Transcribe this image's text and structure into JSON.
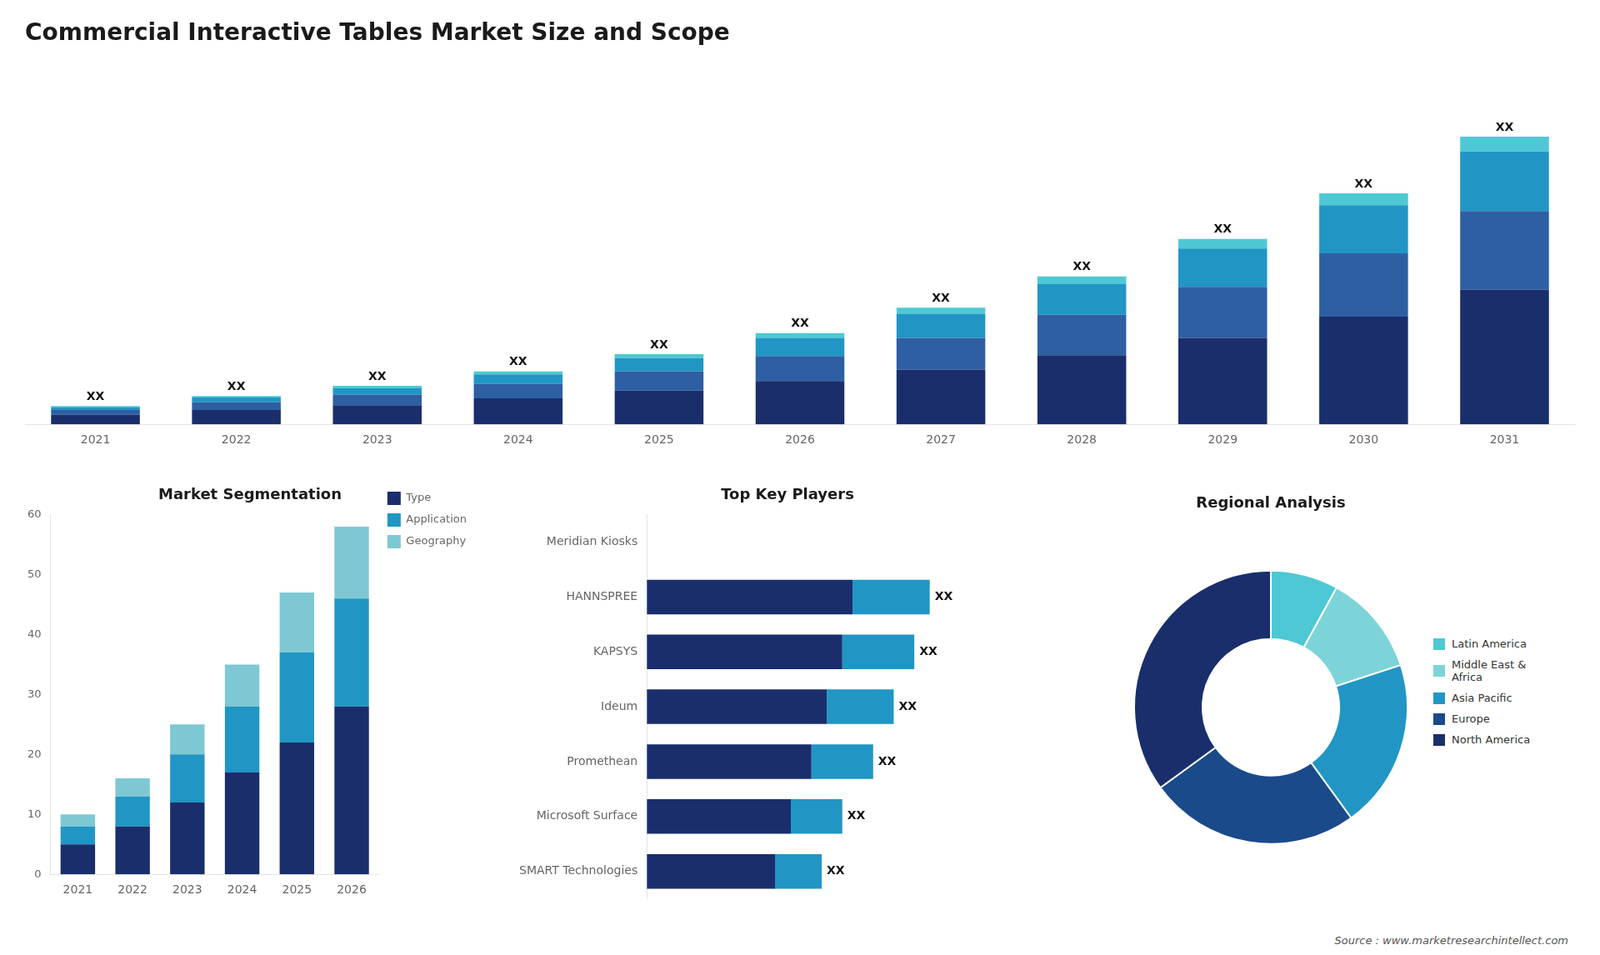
{
  "chart_data": [
    {
      "type": "bar",
      "title": "Commercial Interactive Tables Market Size and Scope",
      "categories": [
        "2021",
        "2022",
        "2023",
        "2024",
        "2025",
        "2026",
        "2027",
        "2028",
        "2029",
        "2030",
        "2031"
      ],
      "series": [
        {
          "color": "#1a2e6c",
          "values": [
            1,
            1.5,
            2,
            2.7,
            3.5,
            4.5,
            5.7,
            7.2,
            9.0,
            11.2,
            14.0
          ]
        },
        {
          "color": "#2e5fa3",
          "values": [
            0.5,
            0.8,
            1.1,
            1.5,
            2.0,
            2.6,
            3.3,
            4.2,
            5.3,
            6.6,
            8.2
          ]
        },
        {
          "color": "#2196c4",
          "values": [
            0.3,
            0.5,
            0.7,
            1.0,
            1.4,
            1.9,
            2.5,
            3.2,
            4.0,
            5.0,
            6.2
          ]
        },
        {
          "color": "#4ec8d4",
          "values": [
            0.1,
            0.15,
            0.2,
            0.3,
            0.4,
            0.5,
            0.65,
            0.8,
            1.0,
            1.25,
            1.55
          ]
        }
      ],
      "stacked": true,
      "value_labels": [
        "XX",
        "XX",
        "XX",
        "XX",
        "XX",
        "XX",
        "XX",
        "XX",
        "XX",
        "XX",
        "XX"
      ],
      "ylim": [
        0,
        37.4375
      ],
      "tick_labels": "x",
      "grid": false
    },
    {
      "type": "bar",
      "title": "Market Segmentation",
      "categories": [
        "2021",
        "2022",
        "2023",
        "2024",
        "2025",
        "2026"
      ],
      "series": [
        {
          "name": "Type",
          "color": "#1a2e6c",
          "values": [
            5,
            8,
            12,
            17,
            22,
            28
          ]
        },
        {
          "name": "Application",
          "color": "#2196c4",
          "values": [
            3,
            5,
            8,
            11,
            15,
            18
          ]
        },
        {
          "name": "Geography",
          "color": "#7ec8d4",
          "values": [
            2,
            3,
            5,
            7,
            10,
            12
          ]
        }
      ],
      "stacked": true,
      "ylim": [
        0,
        60
      ],
      "yticks": [
        0,
        10,
        20,
        30,
        40,
        50,
        60
      ],
      "legend": "right",
      "grid": false
    },
    {
      "type": "bar",
      "orientation": "horizontal",
      "title": "Top Key Players",
      "categories": [
        "Meridian Kiosks",
        "HANNSPREE",
        "KAPSYS",
        "Ideum",
        "Promethean",
        "Microsoft Surface",
        "SMART Technologies"
      ],
      "series": [
        {
          "color": "#1a2e6c",
          "values": [
            0,
            4,
            3.8,
            3.5,
            3.2,
            2.8,
            2.5
          ]
        },
        {
          "color": "#2196c4",
          "values": [
            0,
            1.5,
            1.4,
            1.3,
            1.2,
            1.0,
            0.9
          ]
        }
      ],
      "stacked": true,
      "value_labels": [
        null,
        "XX",
        "XX",
        "XX",
        "XX",
        "XX",
        "XX"
      ],
      "xlim": [
        0,
        8
      ],
      "tick_labels": "y",
      "grid": false
    },
    {
      "type": "doughnut",
      "title": "Regional Analysis",
      "categories": [
        "Latin America",
        "Middle East &\nAfrica",
        "Asia Pacific",
        "Europe",
        "North America"
      ],
      "values": [
        8,
        12,
        20,
        25,
        35
      ],
      "colors": [
        "#4ec8d4",
        "#7dd4d8",
        "#2196c4",
        "#1a4a8a",
        "#1a2e6c"
      ],
      "legend": "right",
      "annotations": [
        "Source : www.marketresearchintellect.com"
      ]
    }
  ]
}
